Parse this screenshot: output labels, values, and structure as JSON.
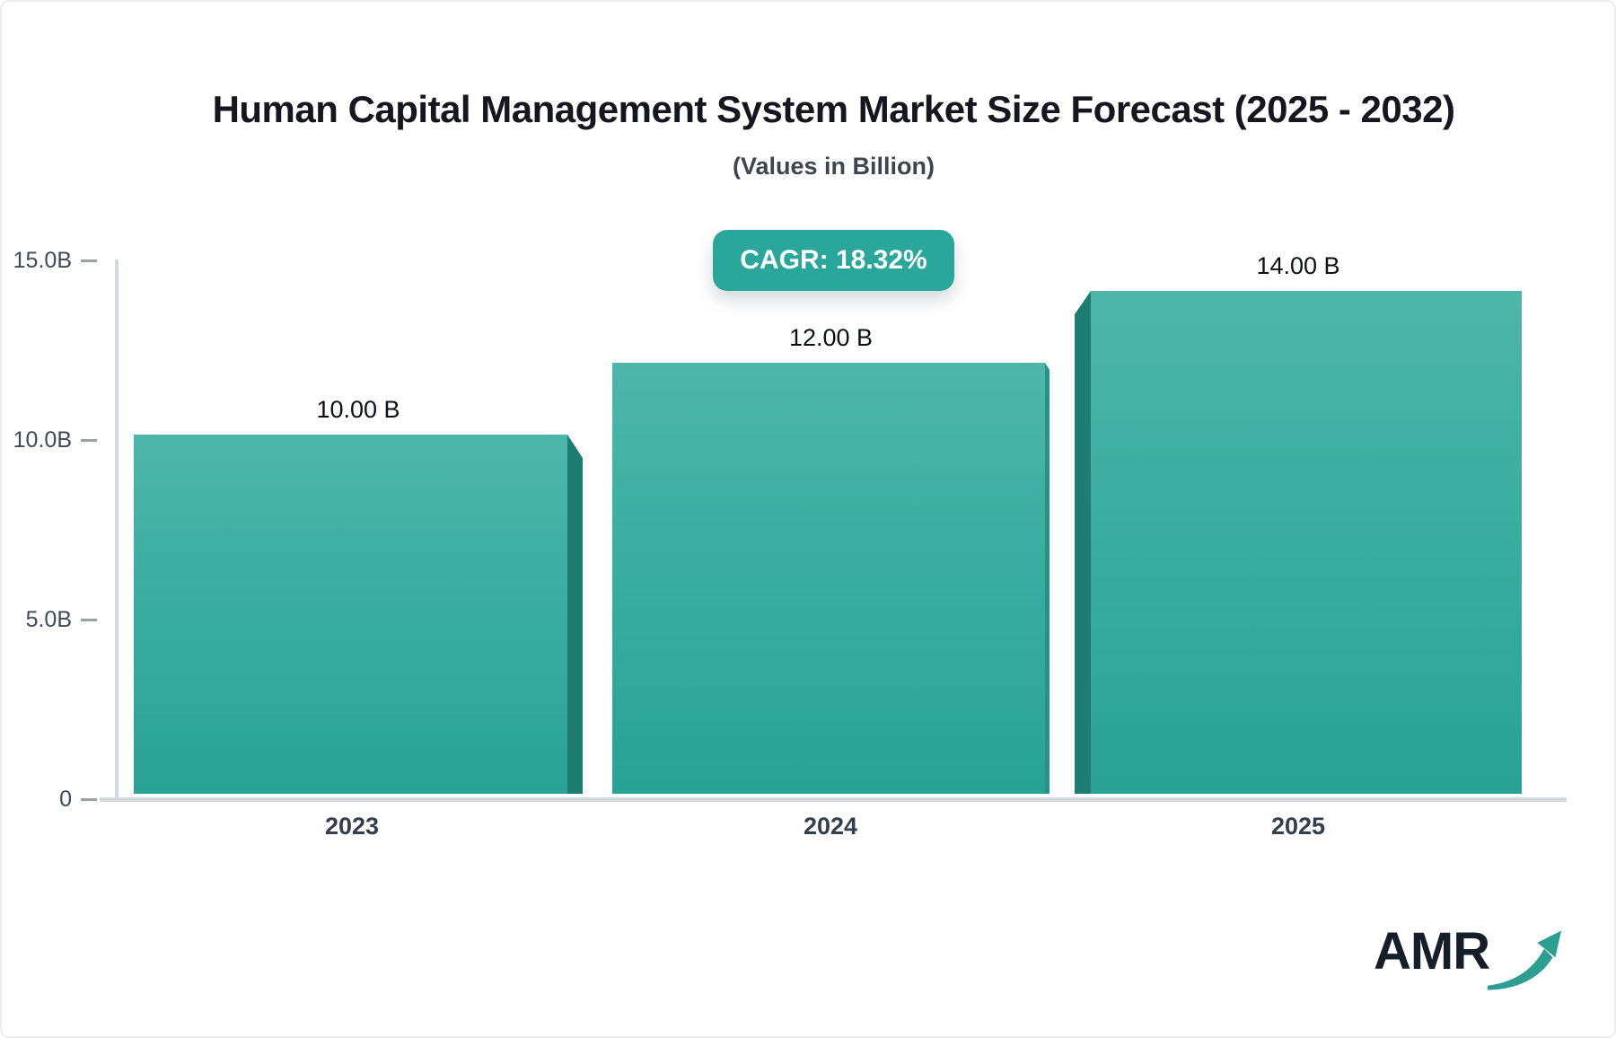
{
  "header": {
    "title": "Human Capital Management System Market Size Forecast (2025 - 2032)",
    "subtitle": "(Values in Billion)"
  },
  "cagr_badge": {
    "label": "CAGR: 18.32%",
    "background": "#2aa79b",
    "text_color": "#ffffff"
  },
  "chart_data": {
    "type": "bar",
    "title": "Human Capital Management System Market Size Forecast (2025 - 2032)",
    "subtitle": "(Values in Billion)",
    "unit": "Billion",
    "cagr": "18.32%",
    "categories": [
      "2023",
      "2024",
      "2025"
    ],
    "values": [
      10.0,
      12.0,
      14.0
    ],
    "value_labels": [
      "10.00 B",
      "12.00 B",
      "14.00 B"
    ],
    "ylim": [
      0,
      15
    ],
    "yticks": [
      {
        "value": 15,
        "label": "15.0B"
      },
      {
        "value": 10,
        "label": "10.0B"
      },
      {
        "value": 5,
        "label": "5.0B"
      },
      {
        "value": 0,
        "label": "0"
      }
    ],
    "grid": false,
    "legend": null,
    "bar_color_top": "#4db6a9",
    "bar_color_bottom": "#2aa296",
    "bar_side_color": "#1e7d71",
    "axis_line_color": "#d5d8dd"
  },
  "logo": {
    "text": "AMR",
    "text_color": "#151f29",
    "arrow_color": "#2d9e92"
  }
}
